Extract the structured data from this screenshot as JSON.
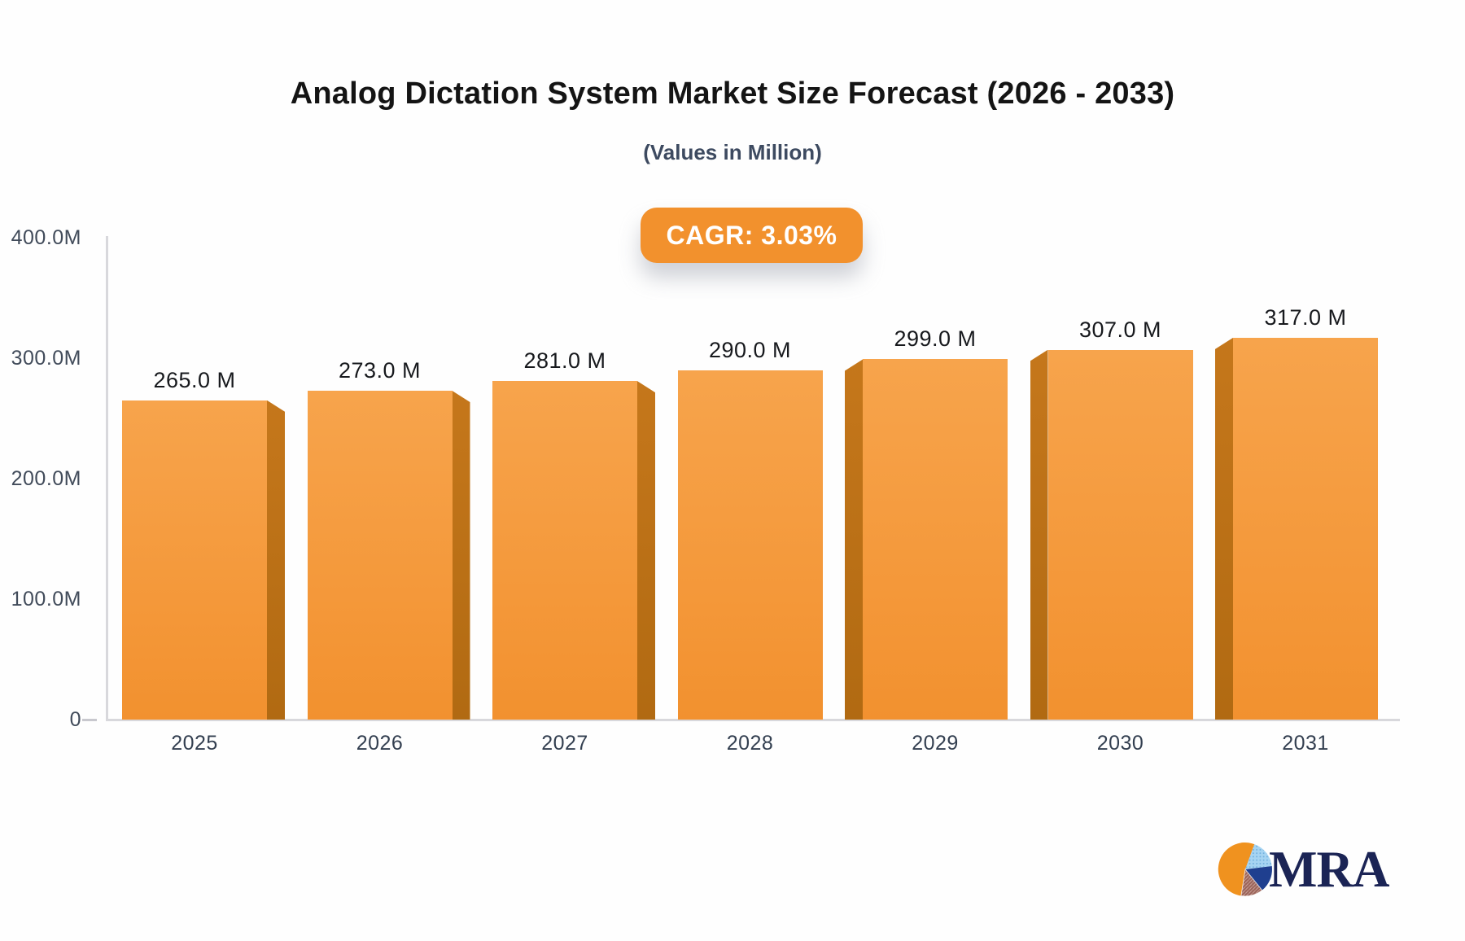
{
  "header": {
    "title": "Analog Dictation System Market Size Forecast (2026 - 2033)",
    "subtitle": "(Values in Million)"
  },
  "badge": {
    "label": "CAGR: 3.03%",
    "background": "#F2912D",
    "text_color": "#FFFFFF"
  },
  "chart_data": {
    "type": "bar",
    "title": "Analog Dictation System Market Size Forecast (2026 - 2033)",
    "subtitle": "(Values in Million)",
    "unit": "Million",
    "categories": [
      "2025",
      "2026",
      "2027",
      "2028",
      "2029",
      "2030",
      "2031"
    ],
    "values": [
      265.0,
      273.0,
      281.0,
      290.0,
      299.0,
      307.0,
      317.0
    ],
    "value_labels": [
      "265.0 M",
      "273.0 M",
      "281.0 M",
      "290.0 M",
      "299.0 M",
      "307.0 M",
      "317.0 M"
    ],
    "cagr_label": "CAGR: 3.03%",
    "ylim": [
      0,
      400
    ],
    "y_ticks": [
      {
        "label": "400.0M",
        "value": 400
      },
      {
        "label": "300.0M",
        "value": 300
      },
      {
        "label": "200.0M",
        "value": 200
      },
      {
        "label": "100.0M",
        "value": 100
      },
      {
        "label": "0",
        "value": 0
      }
    ],
    "grid": false,
    "legend": false,
    "bar_colors": {
      "face_top": "#F7A44C",
      "face_bottom": "#F2912F",
      "side_top": "#C5771B",
      "side_bottom": "#B16A12"
    }
  },
  "logo": {
    "text": "MRA",
    "text_color": "#1B2455",
    "pie_colors": {
      "orange": "#F0921F",
      "light_blue": "#A6D4F2",
      "navy": "#1F3F8F",
      "maroon": "#9A6257"
    }
  }
}
